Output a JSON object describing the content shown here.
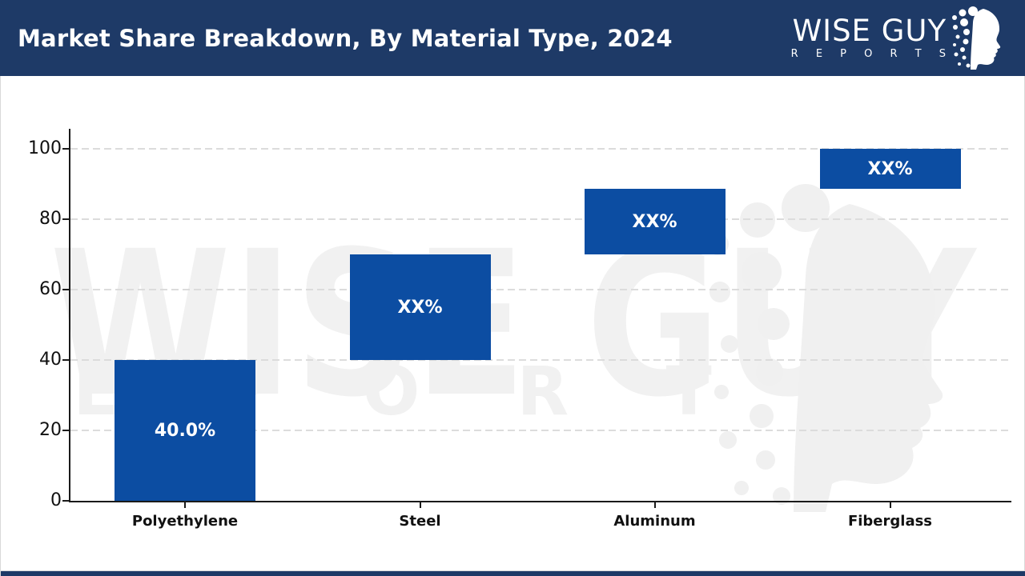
{
  "header": {
    "title": "Market Share Breakdown, By Material Type, 2024",
    "logo": {
      "line1": "WISE GUY",
      "line2": "R E P O R T S"
    }
  },
  "watermark": {
    "line1": "WISE GUY",
    "line2": "R E P O R T S"
  },
  "chart_data": {
    "type": "bar",
    "subtype": "waterfall",
    "title": "Market Share Breakdown, By Material Type, 2024",
    "categories": [
      "Polyethylene",
      "Steel",
      "Aluminum",
      "Fiberglass"
    ],
    "segments": [
      {
        "start": 0,
        "end": 40,
        "label": "40.0%"
      },
      {
        "start": 40,
        "end": 70,
        "label": "XX%"
      },
      {
        "start": 70,
        "end": 88.6,
        "label": "XX%"
      },
      {
        "start": 88.6,
        "end": 100,
        "label": "XX%"
      }
    ],
    "values": [
      40.0,
      30.0,
      18.6,
      11.4
    ],
    "bar_labels": [
      "40.0%",
      "XX%",
      "XX%",
      "XX%"
    ],
    "xlabel": "",
    "ylabel": "",
    "ylim": [
      0,
      100
    ],
    "yticks": [
      0,
      20,
      40,
      60,
      80,
      100
    ],
    "grid": "horizontal-dashed",
    "legend": "none",
    "bar_color": "#0c4da2",
    "header_color": "#1e3a67",
    "label_color": "#ffffff"
  }
}
